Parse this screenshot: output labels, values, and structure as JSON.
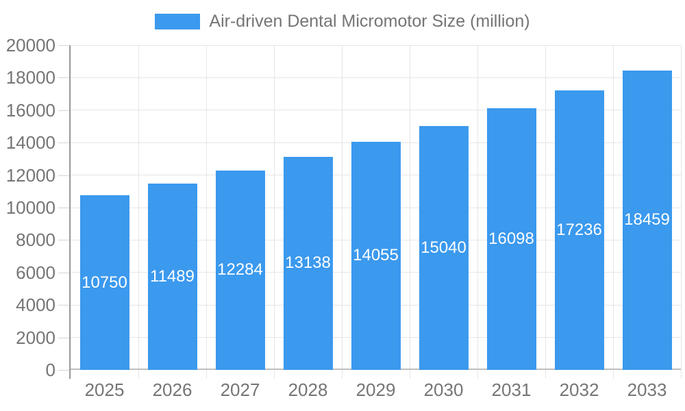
{
  "chart_data": {
    "type": "bar",
    "title": "",
    "categories": [
      "2025",
      "2026",
      "2027",
      "2028",
      "2029",
      "2030",
      "2031",
      "2032",
      "2033"
    ],
    "series": [
      {
        "name": "Air-driven Dental Micromotor Size (million)",
        "values": [
          10750,
          11489,
          12284,
          13138,
          14055,
          15040,
          16098,
          17236,
          18459
        ]
      }
    ],
    "xlabel": "",
    "ylabel": "",
    "ylim": [
      0,
      20000
    ],
    "y_ticks": [
      0,
      2000,
      4000,
      6000,
      8000,
      10000,
      12000,
      14000,
      16000,
      18000,
      20000
    ],
    "grid": true,
    "legend_position": "top",
    "bar_value_labels": "inside-center-white",
    "colors": {
      "bar": "#3B99EE",
      "bar_label": "#FFFFFF",
      "axis_text": "#757575",
      "grid_line": "#E6E6E6",
      "axis_line": "#9E9E9E",
      "background": "#FFFFFF"
    }
  }
}
